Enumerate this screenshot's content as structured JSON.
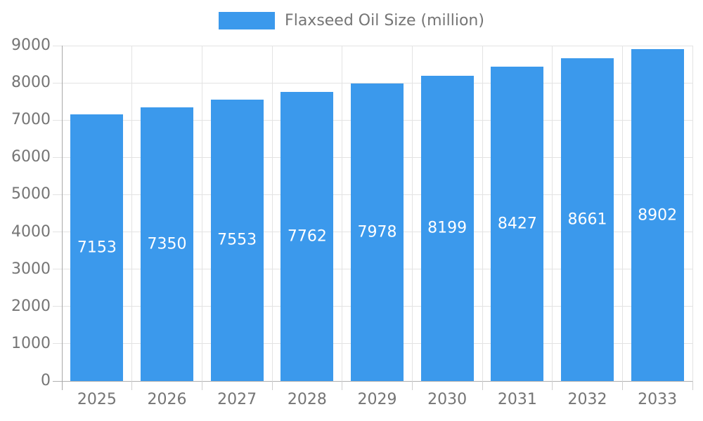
{
  "chart_data": {
    "type": "bar",
    "title": "",
    "legend": {
      "label": "Flaxseed Oil Size (million)",
      "position": "top"
    },
    "categories": [
      "2025",
      "2026",
      "2027",
      "2028",
      "2029",
      "2030",
      "2031",
      "2032",
      "2033"
    ],
    "series": [
      {
        "name": "Flaxseed Oil Size (million)",
        "values": [
          7153,
          7350,
          7553,
          7762,
          7978,
          8199,
          8427,
          8661,
          8902
        ]
      }
    ],
    "value_labels": [
      "7153",
      "7350",
      "7553",
      "7762",
      "7978",
      "8199",
      "8427",
      "8661",
      "8902"
    ],
    "value_label_placement": "inside-middle",
    "xlabel": "",
    "ylabel": "",
    "ylim": [
      0,
      9000
    ],
    "ytick_step": 1000,
    "ytick_labels": [
      "0",
      "1000",
      "2000",
      "3000",
      "4000",
      "5000",
      "6000",
      "7000",
      "8000",
      "9000"
    ],
    "grid": true,
    "colors": {
      "bar": "#3B99EC",
      "value_label_text": "#FFFFFF",
      "axis_text": "#757575",
      "gridline": "#E3E3E3",
      "axis_line_y": "#A8A8A8",
      "baseline": "#B0B0B0",
      "tick": "#CFCFCF",
      "background": "#FFFFFF"
    }
  }
}
